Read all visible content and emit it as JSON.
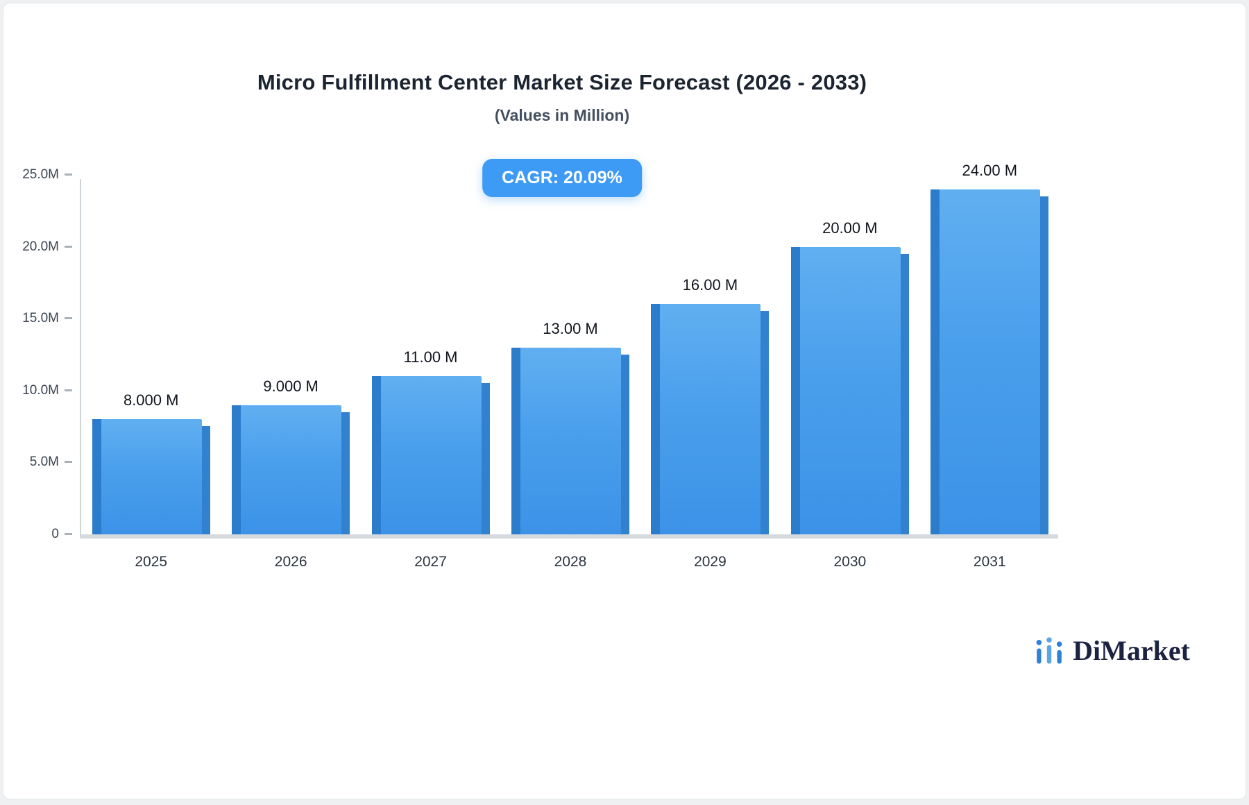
{
  "header": {
    "title": "Micro Fulfillment Center Market Size Forecast (2026 - 2033)",
    "subtitle": "(Values in Million)"
  },
  "badge": {
    "label": "CAGR: 20.09%"
  },
  "logo": {
    "text": "DiMarket",
    "icon": "mini-bar-chart-icon",
    "color": "#2f80d8"
  },
  "colors": {
    "bar_main": "#4a9fec",
    "bar_side_dark": "#2b7ccb",
    "badge_bg": "#3d9bf5",
    "axis": "#cfd4d9"
  },
  "chart_data": {
    "type": "bar",
    "title": "Micro Fulfillment Center Market Size Forecast (2026 - 2033)",
    "subtitle": "(Values in Million)",
    "categories": [
      "2025",
      "2026",
      "2027",
      "2028",
      "2029",
      "2030",
      "2031"
    ],
    "values": [
      8,
      9,
      11,
      13,
      16,
      20,
      24
    ],
    "value_labels": [
      "8.000 M",
      "9.000 M",
      "11.00 M",
      "13.00 M",
      "16.00 M",
      "20.00 M",
      "24.00 M"
    ],
    "y_ticks": [
      "0",
      "5.0M",
      "10.0M",
      "15.0M",
      "20.0M",
      "25.0M"
    ],
    "ylim": [
      0,
      25
    ],
    "xlabel": "",
    "ylabel": "",
    "grid": false,
    "legend": false
  }
}
